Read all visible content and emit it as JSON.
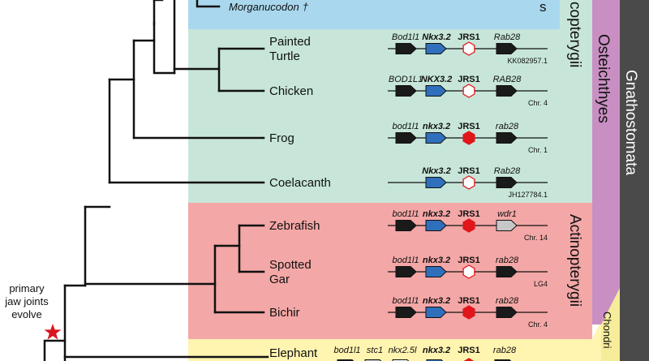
{
  "clades": {
    "sarcopterygii_label": "copterygii",
    "mammalia_label": "s",
    "osteichthyes_label": "Osteichthyes",
    "gnathostomata_label": "Gnathostomata",
    "actinopterygii_label": "Actinopterygii",
    "chondrichthyes_label": "Chondri"
  },
  "fossil": {
    "name": "Morganucodon",
    "dagger": "†"
  },
  "annotation": {
    "line1": "primary",
    "line2": "jaw joints",
    "line3": "evolve"
  },
  "colors": {
    "mammal_bg": "#a9d8ee",
    "sarco_bg": "#c7e6d9",
    "actino_bg": "#f3a7a6",
    "chondri_bg": "#fff4b0",
    "osteichthyes_bar": "#c98fc3",
    "gnathostomata_bar": "#4a4a4a",
    "chondri_bar": "#f6ec9a",
    "gene_black": "#1a1a1a",
    "gene_blue": "#2f6fbb",
    "gene_grey": "#c7c7c7",
    "jrs1_red": "#e0161b",
    "star_red": "#d8161f"
  },
  "taxa": [
    {
      "name": "Painted\nTurtle",
      "line1": "Painted",
      "line2": "Turtle",
      "left_gene": "Bod1l1",
      "mid_gene": "Nkx3.2",
      "jrs": "JRS1",
      "right_gene": "Rab28",
      "locus": "KK082957.1",
      "jrs_active": false,
      "right_grey": false
    },
    {
      "name": "Chicken",
      "left_gene": "BOD1L1",
      "mid_gene": "NKX3.2",
      "jrs": "JRS1",
      "right_gene": "RAB28",
      "locus": "Chr. 4",
      "jrs_active": false,
      "right_grey": false
    },
    {
      "name": "Frog",
      "left_gene": "bod1l1",
      "mid_gene": "nkx3.2",
      "jrs": "JRS1",
      "right_gene": "rab28",
      "locus": "Chr. 1",
      "jrs_active": true,
      "right_grey": false
    },
    {
      "name": "Coelacanth",
      "left_gene": "",
      "mid_gene": "Nkx3.2",
      "jrs": "JRS1",
      "right_gene": "Rab28",
      "locus": "JH127784.1",
      "jrs_active": false,
      "right_grey": false
    },
    {
      "name": "Zebrafish",
      "left_gene": "bod1l1",
      "mid_gene": "nkx3.2",
      "jrs": "JRS1",
      "right_gene": "wdr1",
      "locus": "Chr. 14",
      "jrs_active": true,
      "right_grey": true
    },
    {
      "name": "Spotted\nGar",
      "line1": "Spotted",
      "line2": "Gar",
      "left_gene": "bod1l1",
      "mid_gene": "nkx3.2",
      "jrs": "JRS1",
      "right_gene": "rab28",
      "locus": "LG4",
      "jrs_active": false,
      "right_grey": false
    },
    {
      "name": "Bichir",
      "left_gene": "bod1l1",
      "mid_gene": "nkx3.2",
      "jrs": "JRS1",
      "right_gene": "rab28",
      "locus": "Chr. 4",
      "jrs_active": true,
      "right_grey": false
    }
  ],
  "elephant": {
    "name": "Elephant",
    "genes": [
      "bod1l1",
      "stc1",
      "nkx2.5l",
      "nkx3.2",
      "JRS1",
      "rab28"
    ]
  }
}
